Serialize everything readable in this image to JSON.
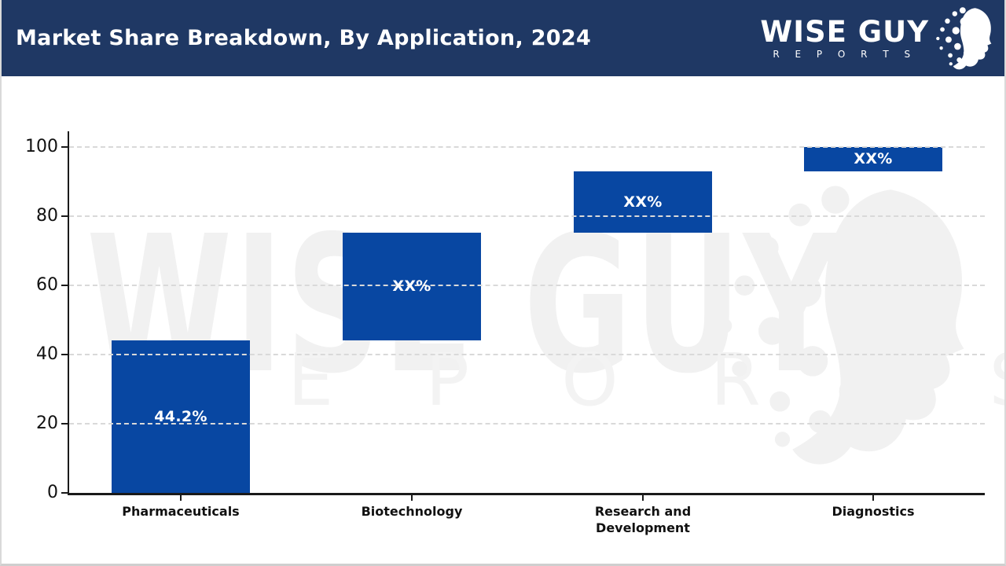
{
  "header": {
    "title": "Market Share Breakdown, By Application, 2024",
    "logo": {
      "line1": "WISE GUY",
      "line2": "R E P O R T S"
    }
  },
  "watermark": {
    "line1": "WISE GUY",
    "line2": "R E P O R T S"
  },
  "colors": {
    "header_bg": "#1f3864",
    "bar_blue": "#0847a2",
    "grid_gray": "#d9d9d9",
    "axis_black": "#1a1a1a",
    "bar_label_white": "#ffffff",
    "watermark_gray": "#f1f1f1"
  },
  "chart_data": {
    "type": "bar",
    "subtype": "waterfall",
    "title": "Market Share Breakdown, By Application, 2024",
    "categories": [
      "Pharmaceuticals",
      "Biotechnology",
      "Research and Development",
      "Diagnostics"
    ],
    "segments": [
      {
        "category": "Pharmaceuticals",
        "start": 0,
        "end": 44.2,
        "label": "44.2%"
      },
      {
        "category": "Biotechnology",
        "start": 44.2,
        "end": 75.2,
        "label": "XX%"
      },
      {
        "category": "Research and Development",
        "start": 75.2,
        "end": 93.0,
        "label": "XX%"
      },
      {
        "category": "Diagnostics",
        "start": 93.0,
        "end": 100.0,
        "label": "XX%"
      }
    ],
    "y_ticks": [
      0,
      20,
      40,
      60,
      80,
      100
    ],
    "ylim": [
      0,
      100
    ],
    "grid": "horizontal-dashed",
    "legend": "none"
  }
}
